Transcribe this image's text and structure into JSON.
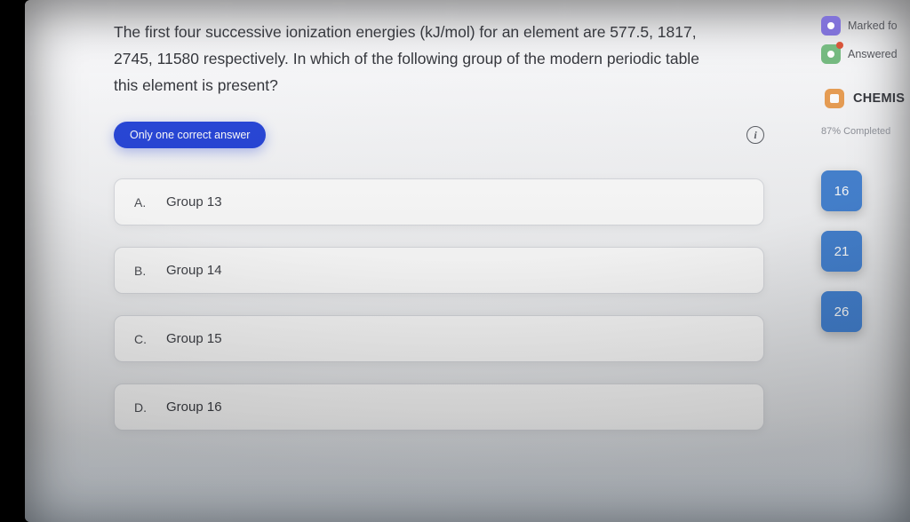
{
  "question": {
    "line1": "The first four successive ionization energies (kJ/mol) for an element are 577.5, 1817,",
    "line2": "2745, 11580 respectively. In which of the following group of the modern periodic table",
    "line3": "this element is present?"
  },
  "badge": "Only one correct answer",
  "info_glyph": "i",
  "options": [
    {
      "letter": "A.",
      "text": "Group 13"
    },
    {
      "letter": "B.",
      "text": "Group 14"
    },
    {
      "letter": "C.",
      "text": "Group 15"
    },
    {
      "letter": "D.",
      "text": "Group 16"
    }
  ],
  "side": {
    "status": [
      {
        "label": "Marked fo",
        "dot_color": "#7a6bd8",
        "kind": "purple"
      },
      {
        "label": "Answered",
        "dot_color": "#6fb87b",
        "kind": "green"
      }
    ],
    "subject_icon_color": "#e99a4c",
    "subject": "CHEMIS",
    "progress": "87% Completed",
    "qnums": [
      {
        "n": "16",
        "bg": "#3f7fd1"
      },
      {
        "n": "21",
        "bg": "#3f7fd1"
      },
      {
        "n": "26",
        "bg": "#3f7fd1"
      }
    ]
  },
  "colors": {
    "badge_bg": "#1f3fd8",
    "option_border": "#d9dbe0"
  }
}
